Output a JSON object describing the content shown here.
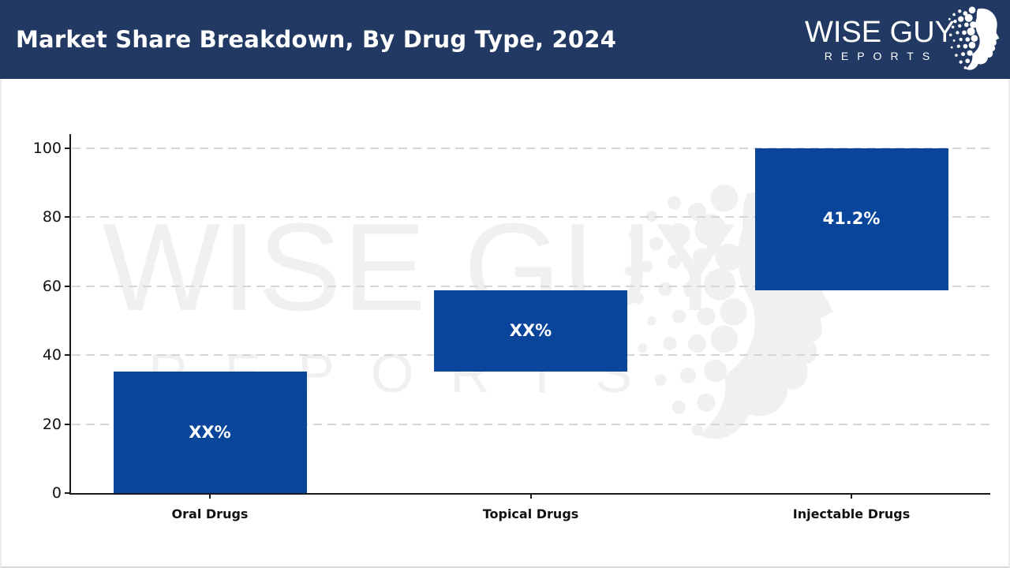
{
  "header": {
    "title": "Market Share Breakdown, By Drug Type, 2024",
    "logo": {
      "line1": "WISE GUY",
      "line2": "REPORTS"
    }
  },
  "watermark": {
    "line1": "WISE GUY",
    "line2": "REPORTS"
  },
  "palette": {
    "header_bg": "#223a63",
    "bar": "#0a459c",
    "bar_label": "#ffffff",
    "axis": "#1a1a1a",
    "grid": "#d6d6d6",
    "watermark": "#f0f0f2",
    "title_text": "#ffffff"
  },
  "chart_data": {
    "type": "bar",
    "subtype": "floating-waterfall",
    "title": "Market Share Breakdown, By Drug Type, 2024",
    "categories": [
      "Oral Drugs",
      "Topical Drugs",
      "Injectable Drugs"
    ],
    "segments": [
      {
        "category": "Oral Drugs",
        "from": 0,
        "to": 35.2,
        "label": "XX%"
      },
      {
        "category": "Topical Drugs",
        "from": 35.2,
        "to": 58.8,
        "label": "XX%"
      },
      {
        "category": "Injectable Drugs",
        "from": 58.8,
        "to": 100,
        "label": "41.2%"
      }
    ],
    "xlabel": "",
    "ylabel": "",
    "ylim": [
      0,
      100
    ],
    "yticks": [
      0,
      20,
      40,
      60,
      80,
      100
    ],
    "grid": "horizontal-dashed",
    "legend": "none"
  }
}
